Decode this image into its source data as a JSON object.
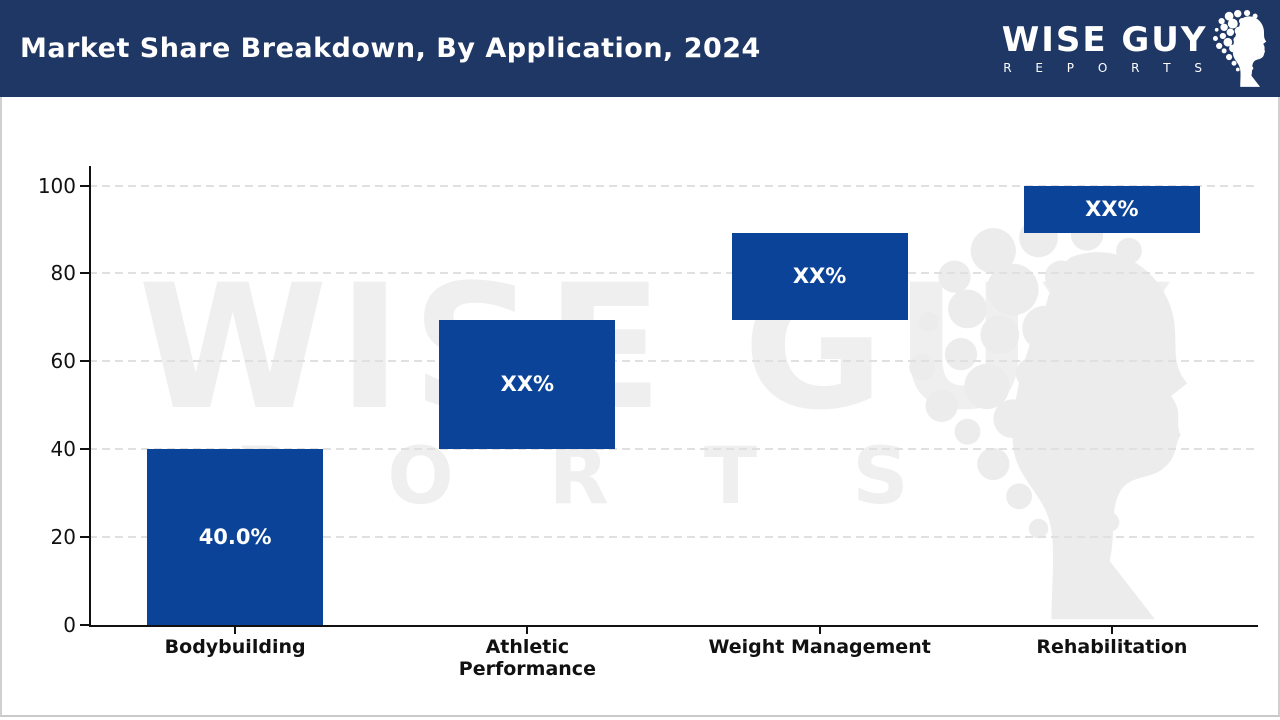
{
  "header": {
    "title": "Market Share Breakdown, By Application, 2024",
    "logo": {
      "line1": "WISE GUY",
      "line2": "R E P O R T S"
    }
  },
  "watermark": {
    "line1": "WISE GUY",
    "line2": "P O R T S"
  },
  "colors": {
    "header_navy": "#1f3764",
    "bar_blue": "#0b4398",
    "bar_label_white": "#ffffff",
    "grid_gray": "#e0e0e0",
    "axis_black": "#111111",
    "watermark_gray": "#efefef"
  },
  "chart_data": {
    "type": "bar",
    "subtype": "waterfall",
    "title": "Market Share Breakdown, By Application, 2024",
    "categories": [
      "Bodybuilding",
      "Athletic\nPerformance",
      "Weight Management",
      "Rehabilitation"
    ],
    "segments": [
      {
        "category": "Bodybuilding",
        "start": 0,
        "end": 40,
        "label": "40.0%"
      },
      {
        "category": "Athletic Performance",
        "start": 40,
        "end": 69.5,
        "label": "XX%"
      },
      {
        "category": "Weight Management",
        "start": 69.5,
        "end": 89.3,
        "label": "XX%"
      },
      {
        "category": "Rehabilitation",
        "start": 89.3,
        "end": 100,
        "label": "XX%"
      }
    ],
    "yticks": [
      0,
      20,
      40,
      60,
      80,
      100
    ],
    "ylim": [
      0,
      104
    ],
    "xlabel": "",
    "ylabel": "",
    "grid": "horizontal-dashed",
    "legend": "none"
  }
}
